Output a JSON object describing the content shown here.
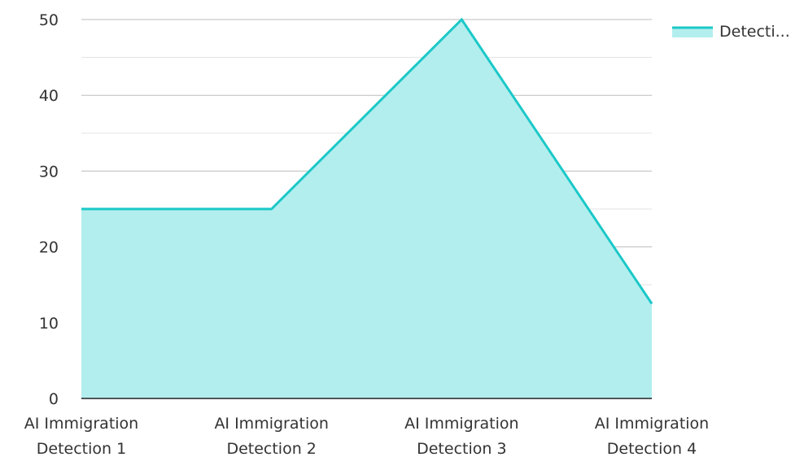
{
  "chart_data": {
    "type": "area",
    "categories": [
      [
        "AI Immigration",
        "Detection 1"
      ],
      [
        "AI Immigration",
        "Detection 2"
      ],
      [
        "AI Immigration",
        "Detection 3"
      ],
      [
        "AI Immigration",
        "Detection 4"
      ]
    ],
    "series": [
      {
        "name": "Detecti...",
        "values": [
          25,
          25,
          50,
          12.5
        ]
      }
    ],
    "ylim": [
      0,
      50
    ],
    "yticks": [
      0,
      10,
      20,
      30,
      40,
      50
    ],
    "grid": true,
    "legend_position": "top-right",
    "colors": {
      "line": "#1cc8c8",
      "fill": "#b3eeee",
      "grid_major": "#bdbdbd",
      "grid_minor": "#e3e3e3",
      "axis": "#222222"
    }
  }
}
